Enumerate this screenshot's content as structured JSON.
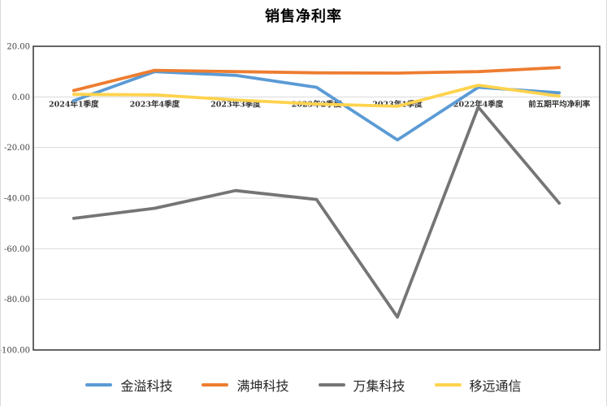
{
  "page": {
    "title": "销售净利率"
  },
  "chart_data": {
    "type": "line",
    "title": "销售净利率",
    "categories": [
      "2024年1季度",
      "2023年4季度",
      "2023年3季度",
      "2023年2季度",
      "2023年1季度",
      "2022年4季度",
      "前五期平均净利率"
    ],
    "series": [
      {
        "name": "金溢科技",
        "color": "#5B9BD5",
        "values": [
          -1.5,
          10.0,
          8.5,
          3.8,
          -17.0,
          3.8,
          1.6
        ]
      },
      {
        "name": "满坤科技",
        "color": "#ED7D31",
        "values": [
          2.5,
          10.5,
          10.0,
          9.5,
          9.4,
          10.0,
          11.6
        ]
      },
      {
        "name": "万集科技",
        "color": "#757575",
        "values": [
          -48.0,
          -44.0,
          -37.0,
          -40.5,
          -87.0,
          -4.0,
          -42.0
        ]
      },
      {
        "name": "移远通信",
        "color": "#FFD34E",
        "values": [
          1.0,
          0.8,
          -1.2,
          -2.8,
          -3.7,
          4.6,
          0.3
        ]
      }
    ],
    "xlabel": "",
    "ylabel": "",
    "ylim": [
      -100,
      20
    ],
    "ytick_step": 20,
    "ytick_labels": [
      "20.00",
      "0.00",
      "-20.00",
      "-40.00",
      "-60.00",
      "-80.00",
      "-100.00"
    ],
    "grid": true,
    "gridline_color": "#d9d9d9",
    "frame_color": "#3f3f3f",
    "axis_label_color": "#404040",
    "legend_position": "bottom"
  }
}
